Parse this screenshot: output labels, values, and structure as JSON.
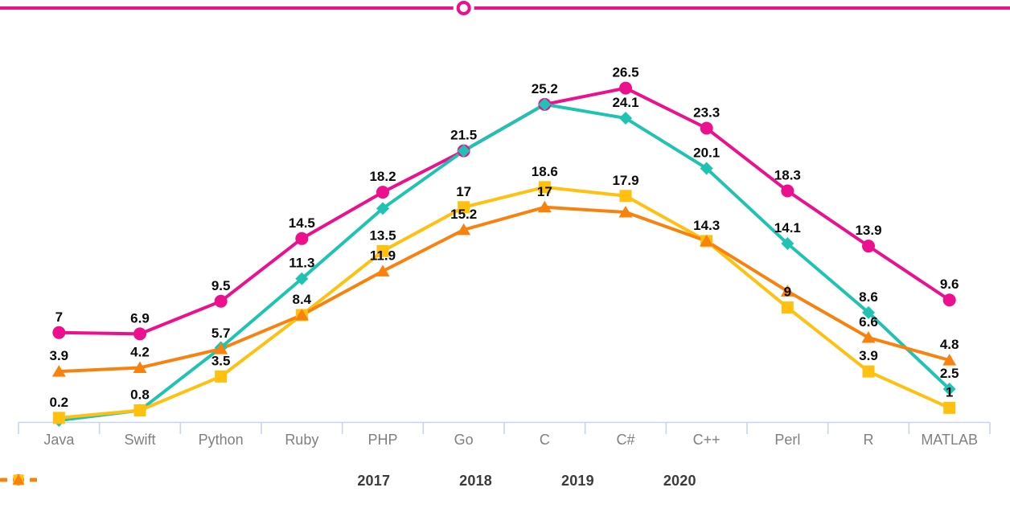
{
  "chart_data": {
    "type": "line",
    "categories": [
      "Java",
      "Swift",
      "Python",
      "Ruby",
      "PHP",
      "Go",
      "C",
      "C#",
      "C++",
      "Perl",
      "R",
      "MATLAB"
    ],
    "series": [
      {
        "name": "2017",
        "color": "#EC0F8E",
        "marker": "circle",
        "values": [
          7,
          6.9,
          9.5,
          14.5,
          18.2,
          21.5,
          25.2,
          26.5,
          23.3,
          18.3,
          13.9,
          9.6
        ],
        "point_labels": [
          "7",
          "6.9",
          "9.5",
          "14.5",
          "18.2",
          "21.5",
          "25.2",
          "26.5",
          "23.3",
          "18.3",
          "13.9",
          "9.6"
        ]
      },
      {
        "name": "2018",
        "color": "#1EC3B3",
        "marker": "diamond",
        "values": [
          0,
          0.8,
          5.8,
          11.3,
          16.9,
          21.5,
          25.2,
          24.1,
          20.1,
          14.1,
          8.6,
          2.5
        ],
        "point_labels": [
          "",
          "",
          "",
          "11.3",
          "",
          "",
          "",
          "24.1",
          "20.1",
          "14.1",
          "8.6",
          "2.5"
        ]
      },
      {
        "name": "2019",
        "color": "#FFC010",
        "marker": "square",
        "values": [
          0.2,
          0.8,
          3.5,
          8.4,
          13.5,
          17,
          18.6,
          17.9,
          14.3,
          9,
          3.9,
          1
        ],
        "point_labels": [
          "0.2",
          "0.8",
          "3.5",
          "",
          "13.5",
          "17",
          "18.6",
          "17.9",
          "",
          "9",
          "3.9",
          "1"
        ]
      },
      {
        "name": "2020",
        "color": "#F9820D",
        "marker": "triangle",
        "values": [
          3.9,
          4.2,
          5.7,
          8.4,
          11.9,
          15.2,
          17,
          16.6,
          14.3,
          10.3,
          6.6,
          4.8
        ],
        "point_labels": [
          "3.9",
          "4.2",
          "5.7",
          "8.4",
          "11.9",
          "15.2",
          "17",
          "",
          "14.3",
          "",
          "6.6",
          "4.8"
        ]
      }
    ],
    "ylim": [
      0,
      33
    ],
    "grid": "off",
    "y_axis_visible": false,
    "x_axis": {
      "axis_color": "#C7D4F0",
      "label_color": "#808080"
    },
    "legend": {
      "position": "bottom",
      "items": [
        "2017",
        "2018",
        "2019",
        "2020"
      ]
    },
    "top_clipped_line": {
      "color": "#EC0F8E",
      "marker_category": "Go"
    },
    "data_label_color": "#0A0A0A"
  }
}
